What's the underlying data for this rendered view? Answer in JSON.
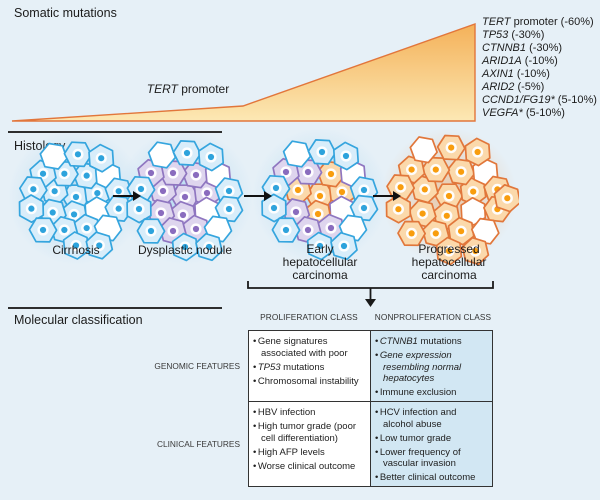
{
  "page": {
    "background": "#e6f0f7"
  },
  "somatic": {
    "title": "Somatic mutations",
    "wedge_label": {
      "it": "TERT",
      "post": " promoter"
    },
    "wedge_colors": {
      "stroke": "#e2763b",
      "fill_top": "#f4b159",
      "fill_bottom": "#fce8b4"
    },
    "genes": [
      {
        "it": "TERT",
        "post": " promoter (-60%)"
      },
      {
        "it": "TP53",
        "post": " (-30%)"
      },
      {
        "it": "CTNNB1",
        "post": " (-30%)"
      },
      {
        "it": "ARID1A",
        "post": " (-10%)"
      },
      {
        "it": "AXIN1",
        "post": " (-10%)"
      },
      {
        "it": "ARID2",
        "post": " (-5%)"
      },
      {
        "it": "CCND1/FG19*",
        "post": " (5-10%)"
      },
      {
        "it": "VEGFA*",
        "post": " (5-10%)"
      }
    ]
  },
  "histology": {
    "title": "Histology",
    "palettes": {
      "blue": {
        "stroke": "#35a5de",
        "fill": "#d8edfa",
        "dot": "#2ea3dc"
      },
      "purple": {
        "stroke": "#8f76c0",
        "fill": "#ded5ee",
        "dot": "#8a6cbe"
      },
      "orange": {
        "stroke": "#e1773b",
        "fill": "#fbd9ab",
        "dot": "#f89d0e"
      }
    },
    "glow_colors": {
      "blue": "rgba(150,205,240,0.60)",
      "orange": "rgba(233,178,126,0.65)"
    },
    "clusters": [
      {
        "id": "cirrhosis",
        "label": "Cirrhosis",
        "glow": "blue",
        "core": "blue",
        "mid": "blue",
        "outer": "blue"
      },
      {
        "id": "dysplastic-nodule",
        "label": "Dysplastic nodule",
        "glow": "blue",
        "core": "purple",
        "mid": "purple",
        "outer": "blue"
      },
      {
        "id": "early-hcc",
        "label": "Early hepatocellular carcinoma",
        "glow": "blue",
        "core": "orange",
        "mid": "purple",
        "outer": "blue"
      },
      {
        "id": "progressed-hcc",
        "label": "Progressed hepatocellular carcinoma",
        "glow": "orange",
        "core": "orange",
        "mid": "orange",
        "outer": "orange"
      }
    ]
  },
  "classification": {
    "title": "Molecular classification",
    "columns": [
      "PROLIFERATION CLASS",
      "NONPROLIFERATION CLASS"
    ],
    "rows": [
      "GENOMIC FEATURES",
      "CLINICAL FEATURES"
    ],
    "nonprolif_bg": "#d2e7f3",
    "cells": {
      "genomic_prolif": [
        {
          "post": "Gene signatures associated with poor"
        },
        {
          "it": "TP53",
          "post": " mutations"
        },
        {
          "post": "Chromosomal instability"
        }
      ],
      "genomic_nonprolif": [
        {
          "it": "CTNNB1",
          "post": " mutations"
        },
        {
          "it": "Gene expression resembling normal hepatocytes"
        },
        {
          "post": "Immune exclusion"
        }
      ],
      "clinical_prolif": [
        {
          "post": "HBV infection"
        },
        {
          "post": "High tumor grade (poor cell differentiation)"
        },
        {
          "post": "High AFP levels"
        },
        {
          "post": "Worse clinical outcome"
        }
      ],
      "clinical_nonprolif": [
        {
          "post": "HCV infection and alcohol abuse"
        },
        {
          "post": "Low tumor grade"
        },
        {
          "post": "Lower frequency of vascular invasion"
        },
        {
          "post": "Better clinical outcome"
        }
      ]
    }
  }
}
